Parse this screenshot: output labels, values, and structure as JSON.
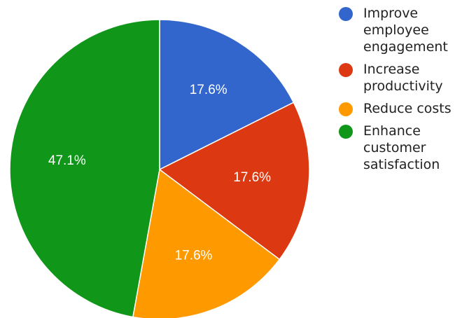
{
  "chart_data": {
    "type": "pie",
    "title": "",
    "start_angle_deg": 0,
    "direction": "clockwise",
    "legend_position": "right",
    "slices": [
      {
        "label": "Improve employee engagement",
        "value": 17.6,
        "value_label": "17.6%",
        "color": "#3366cc"
      },
      {
        "label": "Increase productivity",
        "value": 17.6,
        "value_label": "17.6%",
        "color": "#dc3912"
      },
      {
        "label": "Reduce costs",
        "value": 17.6,
        "value_label": "17.6%",
        "color": "#ff9900"
      },
      {
        "label": "Enhance customer satisfaction",
        "value": 47.1,
        "value_label": "47.1%",
        "color": "#109618"
      }
    ]
  }
}
